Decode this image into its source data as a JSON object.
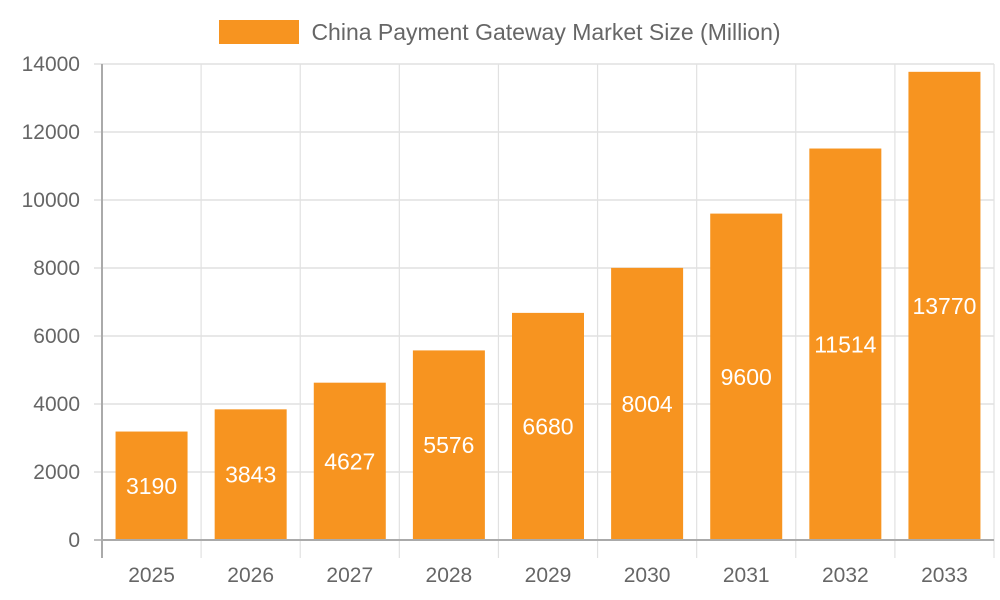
{
  "chart": {
    "legend_label": "China Payment Gateway Market Size (Million)",
    "bar_color": "#f79420",
    "grid_color": "#e1e1e1",
    "axis_color": "#aaaaaa"
  },
  "chart_data": {
    "type": "bar",
    "title": "",
    "categories": [
      "2025",
      "2026",
      "2027",
      "2028",
      "2029",
      "2030",
      "2031",
      "2032",
      "2033"
    ],
    "series": [
      {
        "name": "China Payment Gateway Market Size (Million)",
        "values": [
          3190,
          3843,
          4627,
          5576,
          6680,
          8004,
          9600,
          11514,
          13770
        ]
      }
    ],
    "xlabel": "",
    "ylabel": "",
    "ylim": [
      0,
      14000
    ],
    "yticks": [
      0,
      2000,
      4000,
      6000,
      8000,
      10000,
      12000,
      14000
    ],
    "grid": true,
    "legend_position": "top",
    "data_labels": true
  }
}
